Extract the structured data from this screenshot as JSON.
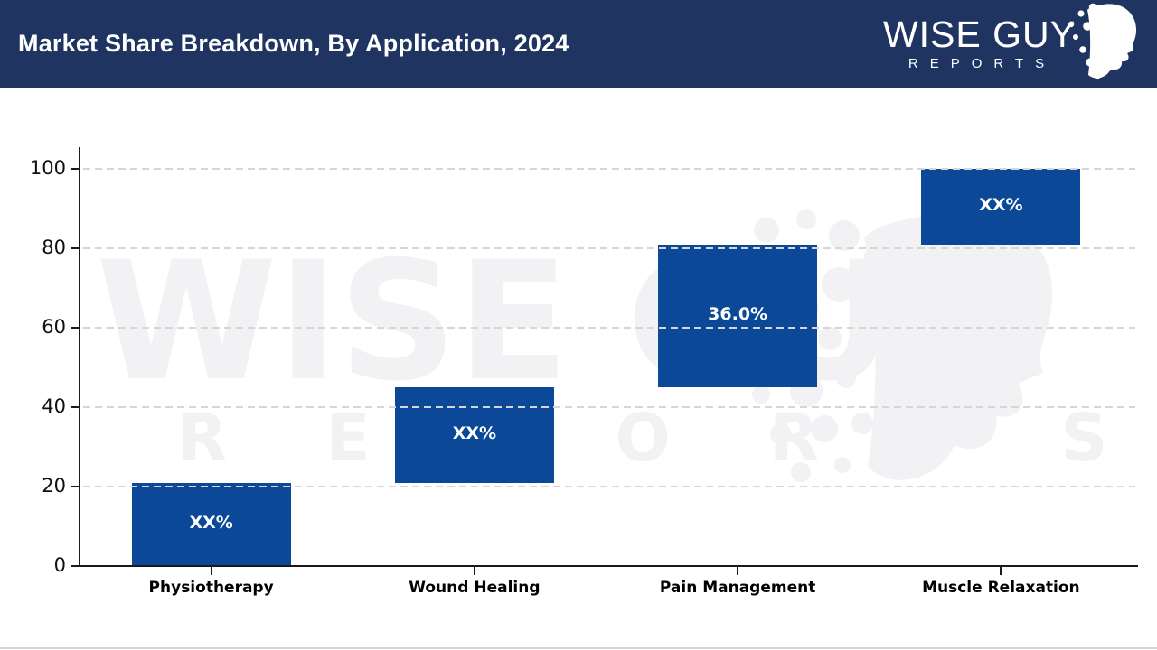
{
  "header": {
    "title": "Market Share Breakdown, By Application, 2024",
    "logo_line1": "WISE GUY",
    "logo_line2": "REPORTS",
    "bg_color": "#1f3461"
  },
  "watermark": {
    "line1": "WISE GU",
    "line2": "R E P O R T S"
  },
  "chart_data": {
    "type": "bar",
    "subtype": "floating-segment-waterfall",
    "title": "Market Share Breakdown, By Application, 2024",
    "categories": [
      "Physiotherapy",
      "Wound Healing",
      "Pain Management",
      "Muscle Relaxation"
    ],
    "segments": [
      {
        "category": "Physiotherapy",
        "start": 0,
        "end": 21,
        "label": "XX%"
      },
      {
        "category": "Wound Healing",
        "start": 21,
        "end": 45,
        "label": "XX%"
      },
      {
        "category": "Pain Management",
        "start": 45,
        "end": 81,
        "label": "36.0%"
      },
      {
        "category": "Muscle Relaxation",
        "start": 81,
        "end": 100,
        "label": "XX%"
      }
    ],
    "y_ticks": [
      0,
      20,
      40,
      60,
      80,
      100
    ],
    "ylim": [
      0,
      100
    ],
    "xlabel": "",
    "ylabel": "",
    "legend": "none",
    "grid": "horizontal dashed, drawn above bars",
    "bar_color": "#0b4898",
    "bar_label_color": "#ffffff"
  },
  "colors": {
    "header_bg": "#1f3461",
    "bar_blue": "#0b4898",
    "gridline": "#d6d6d6",
    "axis": "#1a1a1a",
    "watermark": "#f2f2f5",
    "background": "#ffffff"
  }
}
